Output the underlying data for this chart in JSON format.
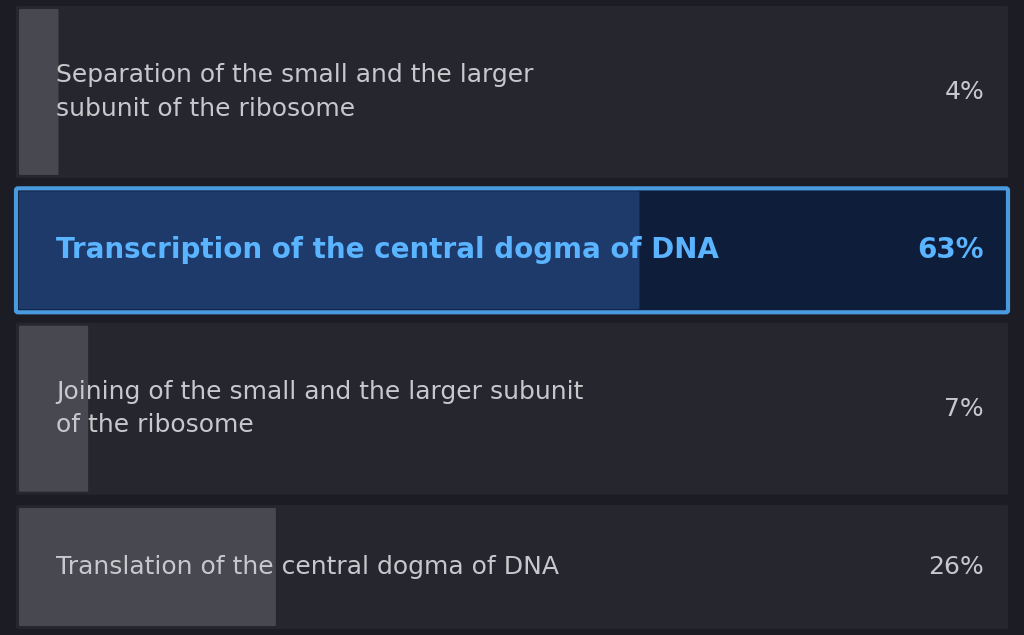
{
  "background_color": "#1c1c24",
  "items": [
    {
      "label": "Separation of the small and the larger\nsubunit of the ribosome",
      "percentage": 4,
      "is_selected": false,
      "text_color": "#c8c8cc",
      "pct_color": "#c8c8cc",
      "bar_color": "#484850",
      "box_bg": "#26262e",
      "box_border": "#484850",
      "border_width": 0,
      "font_size": 18
    },
    {
      "label": "Transcription of the central dogma of DNA",
      "percentage": 63,
      "is_selected": true,
      "text_color": "#5ab4ff",
      "pct_color": "#5ab4ff",
      "bar_color": "#1e3a6a",
      "box_bg": "#0e1e3a",
      "box_border": "#4a9ae0",
      "border_width": 3,
      "font_size": 20
    },
    {
      "label": "Joining of the small and the larger subunit\nof the ribosome",
      "percentage": 7,
      "is_selected": false,
      "text_color": "#c8c8cc",
      "pct_color": "#c8c8cc",
      "bar_color": "#484850",
      "box_bg": "#26262e",
      "box_border": "#484850",
      "border_width": 0,
      "font_size": 18
    },
    {
      "label": "Translation of the central dogma of DNA",
      "percentage": 26,
      "is_selected": false,
      "text_color": "#c8c8cc",
      "pct_color": "#c8c8cc",
      "bar_color": "#484850",
      "box_bg": "#26262e",
      "box_border": "#484850",
      "border_width": 0,
      "font_size": 18
    }
  ],
  "outer_bg": "#1c1c24",
  "fig_w": 10.24,
  "fig_h": 6.35,
  "dpi": 100
}
